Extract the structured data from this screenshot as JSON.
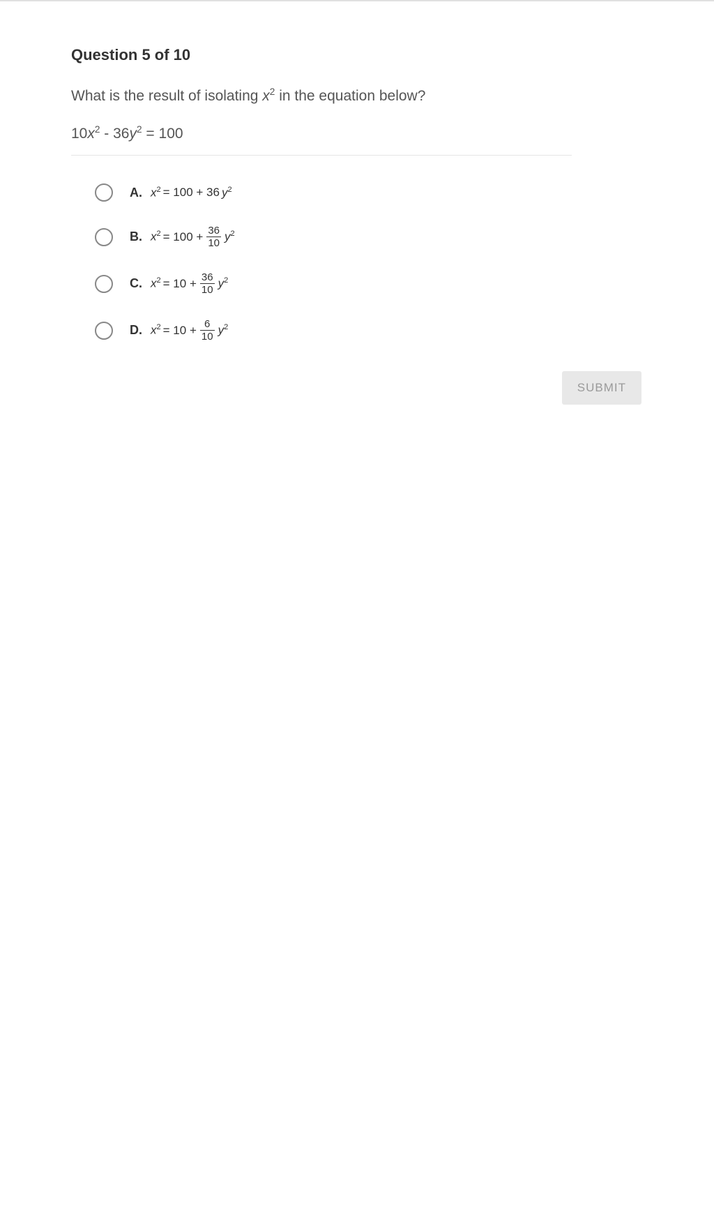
{
  "header": {
    "title": "Question 5 of 10"
  },
  "question": {
    "prompt_before": "What is the result of isolating ",
    "prompt_var": "x",
    "prompt_exp": "2",
    "prompt_after": " in the equation below?",
    "equation_lhs1": "10",
    "equation_var1": "x",
    "equation_exp1": "2",
    "equation_mid": " - 36",
    "equation_var2": "y",
    "equation_exp2": "2",
    "equation_rhs": " = 100"
  },
  "options": {
    "A": {
      "letter": "A.",
      "lhs_var": "x",
      "lhs_exp": "2",
      "eq": " = 100 + 36",
      "rhs_var": "y",
      "rhs_exp": "2"
    },
    "B": {
      "letter": "B.",
      "lhs_var": "x",
      "lhs_exp": "2",
      "eq": " = 100 + ",
      "frac_num": "36",
      "frac_den": "10",
      "rhs_var": "y",
      "rhs_exp": "2"
    },
    "C": {
      "letter": "C.",
      "lhs_var": "x",
      "lhs_exp": "2",
      "eq": " = 10 + ",
      "frac_num": "36",
      "frac_den": "10",
      "rhs_var": "y",
      "rhs_exp": "2"
    },
    "D": {
      "letter": "D.",
      "lhs_var": "x",
      "lhs_exp": "2",
      "eq": " = 10 + ",
      "frac_num": "6",
      "frac_den": "10",
      "rhs_var": "y",
      "rhs_exp": "2"
    }
  },
  "submit": {
    "label": "SUBMIT"
  },
  "colors": {
    "text": "#3c3c3c",
    "muted": "#9a9a9a",
    "button_bg": "#e8e8e8",
    "divider": "#e0e0e0",
    "radio_border": "#888888"
  }
}
